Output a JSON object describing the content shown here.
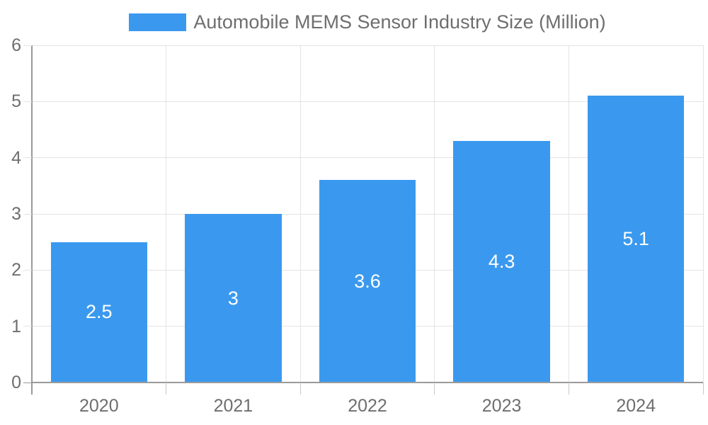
{
  "colors": {
    "bar": "#3a99ef",
    "axis": "#9a9a9a",
    "grid": "#e4e4e4",
    "tick": "#c9c9c9",
    "text": "#6e6e6e",
    "value_text": "#ffffff",
    "background": "#ffffff"
  },
  "legend": {
    "label": "Automobile MEMS Sensor Industry Size (Million)"
  },
  "chart_data": {
    "type": "bar",
    "title": "Automobile MEMS Sensor Industry Size (Million)",
    "categories": [
      "2020",
      "2021",
      "2022",
      "2023",
      "2024"
    ],
    "values": [
      2.5,
      3,
      3.6,
      4.3,
      5.1
    ],
    "value_labels": [
      "2.5",
      "3",
      "3.6",
      "4.3",
      "5.1"
    ],
    "xlabel": "",
    "ylabel": "",
    "ylim": [
      0,
      6
    ],
    "y_ticks": [
      0,
      1,
      2,
      3,
      4,
      5,
      6
    ],
    "grid": true,
    "legend_position": "top-center",
    "bar_label_position": "inside-center"
  }
}
